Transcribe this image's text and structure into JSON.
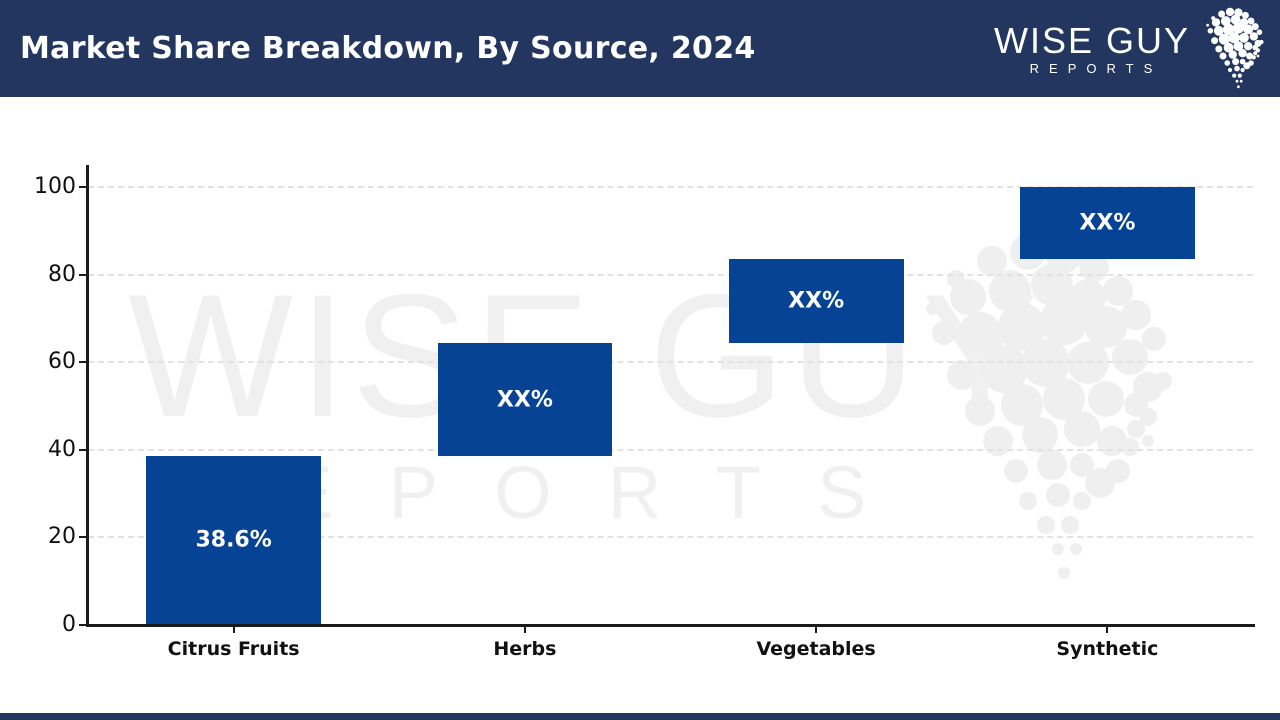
{
  "header": {
    "title": "Market Share Breakdown, By Source, 2024"
  },
  "brand": {
    "line1": "WISE GUY",
    "line2": "REPORTS"
  },
  "colors": {
    "header_bg": "#22365f",
    "bar_blue": "#064394",
    "bar_label_text": "#ffffff",
    "axis": "#1a1a1a",
    "gridline": "#e2e2e2",
    "tick_text": "#111111",
    "watermark": "#f0f0f0"
  },
  "chart_data": {
    "type": "bar",
    "subtype": "waterfall-floating-bars",
    "title": "Market Share Breakdown, By Source, 2024",
    "categories": [
      "Citrus Fruits",
      "Herbs",
      "Vegetables",
      "Synthetic"
    ],
    "segments": [
      {
        "category": "Citrus Fruits",
        "start": 0,
        "end": 38.6,
        "label": "38.6%"
      },
      {
        "category": "Herbs",
        "start": 38.6,
        "end": 64.3,
        "label": "XX%"
      },
      {
        "category": "Vegetables",
        "start": 64.3,
        "end": 83.6,
        "label": "XX%"
      },
      {
        "category": "Synthetic",
        "start": 83.6,
        "end": 100,
        "label": "XX%"
      }
    ],
    "yticks": [
      0,
      20,
      40,
      60,
      80,
      100
    ],
    "ylim": [
      0,
      105
    ],
    "xlabel": "",
    "ylabel": "",
    "grid": "horizontal-dashed",
    "legend": "none",
    "bar_color": "#064394",
    "bar_width_frac": 0.6
  }
}
